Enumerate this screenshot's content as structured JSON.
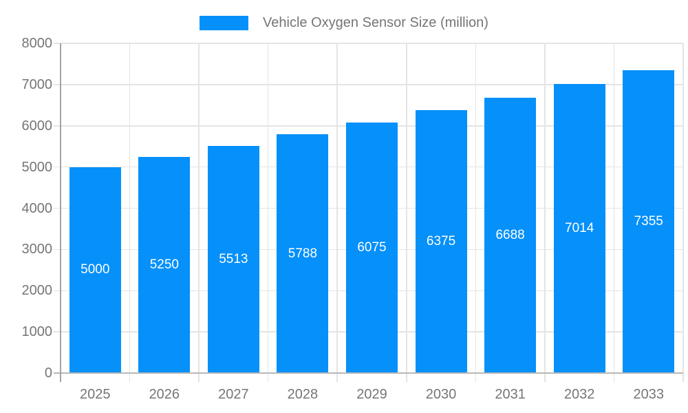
{
  "legend": {
    "label": "Vehicle Oxygen Sensor Size (million)",
    "position": "top"
  },
  "colors": {
    "bar": "#0590fa",
    "value_label": "#ffffff",
    "axis_text": "#757575",
    "grid": "#e4e4e4",
    "axis_line": "#a3a3a3",
    "bottom_line": "#b8b8b8",
    "background": "#ffffff"
  },
  "chart_data": {
    "type": "bar",
    "title": "Vehicle Oxygen Sensor Size (million)",
    "categories": [
      "2025",
      "2026",
      "2027",
      "2028",
      "2029",
      "2030",
      "2031",
      "2032",
      "2033"
    ],
    "values": [
      5000,
      5250,
      5513,
      5788,
      6075,
      6375,
      6688,
      7014,
      7355
    ],
    "value_labels": [
      "5000",
      "5250",
      "5513",
      "5788",
      "6075",
      "6375",
      "6688",
      "7014",
      "7355"
    ],
    "xlabel": "",
    "ylabel": "",
    "ylim": [
      0,
      8000
    ],
    "ytick_step": 1000,
    "ytick_labels": [
      "0",
      "1000",
      "2000",
      "3000",
      "4000",
      "5000",
      "6000",
      "7000",
      "8000"
    ],
    "grid": true,
    "legend_position": "top",
    "value_labels_inside_bars": true
  }
}
